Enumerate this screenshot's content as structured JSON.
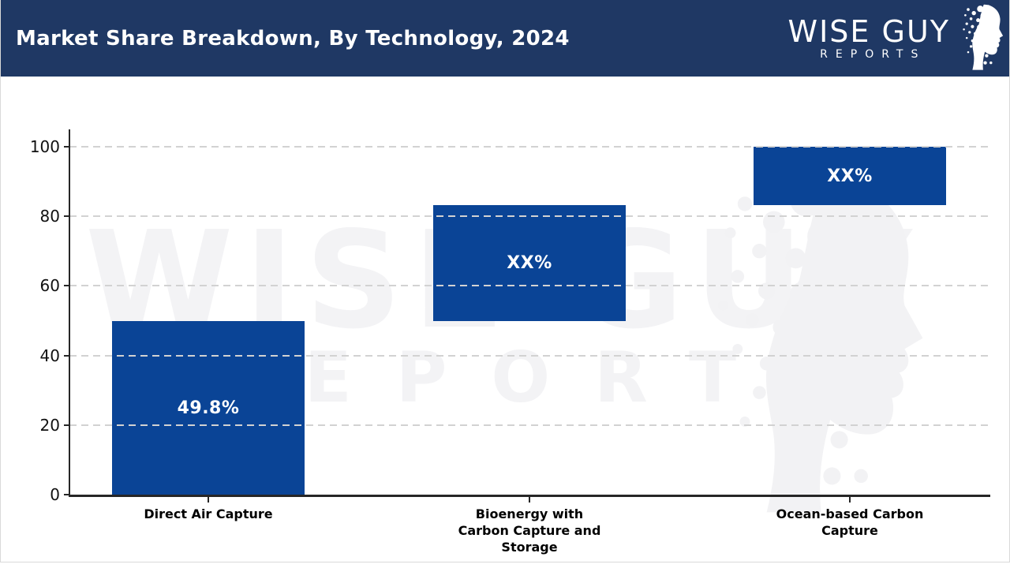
{
  "header": {
    "title": "Market Share Breakdown, By Technology, 2024",
    "bg_color": "#1f3864",
    "brand": {
      "line1": "WISE GUY",
      "line2": "REPORTS"
    }
  },
  "watermark": {
    "line1": "WISE GUY",
    "line2": "REPORTS"
  },
  "chart_data": {
    "type": "bar",
    "subtype": "stacked-waterfall-percentage",
    "title": "Market Share Breakdown, By Technology, 2024",
    "categories": [
      "Direct Air Capture",
      "Bioenergy with Carbon Capture and Storage",
      "Ocean-based Carbon Capture"
    ],
    "segments": [
      {
        "category_lines": [
          "Direct Air Capture"
        ],
        "start": 0,
        "end": 49.8,
        "value_label": "49.8%"
      },
      {
        "category_lines": [
          "Bioenergy with",
          "Carbon Capture and",
          "Storage"
        ],
        "start": 49.8,
        "end": 83.2,
        "value_label": "XX%"
      },
      {
        "category_lines": [
          "Ocean-based Carbon",
          "Capture"
        ],
        "start": 83.2,
        "end": 100,
        "value_label": "XX%"
      }
    ],
    "y_ticks": [
      0,
      20,
      40,
      60,
      80,
      100
    ],
    "ylim": [
      0,
      105
    ],
    "xlabel": "",
    "ylabel": "",
    "bar_color": "#0a4496",
    "grid": "horizontal-dashed",
    "legend": "none"
  }
}
